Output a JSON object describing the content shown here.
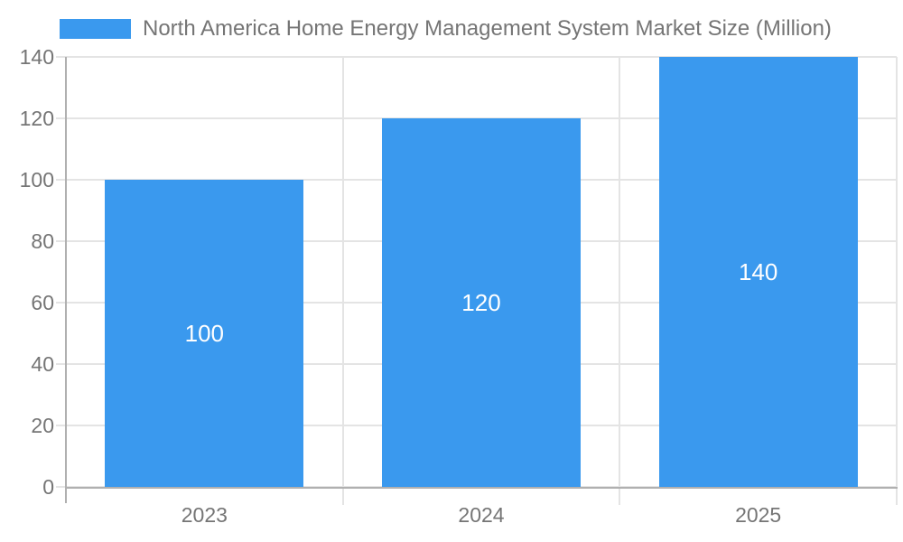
{
  "chart_data": {
    "type": "bar",
    "title": "North America Home Energy Management System Market Size (Million)",
    "series_name": "North America Home Energy Management System Market Size (Million)",
    "categories": [
      "2023",
      "2024",
      "2025"
    ],
    "values": [
      100,
      120,
      140
    ],
    "data_labels": [
      "100",
      "120",
      "140"
    ],
    "xlabel": "",
    "ylabel": "",
    "ylim": [
      0,
      140
    ],
    "yticks": [
      0,
      20,
      40,
      60,
      80,
      100,
      120,
      140
    ],
    "grid": true,
    "legend_position": "top-left",
    "data_labels_inside_bars": true,
    "colors": {
      "bar": "#3A99EE",
      "bar_label": "#FFFFFF",
      "axis_text": "#757575",
      "grid_line": "#E4E4E4",
      "axis_line": "#B0B0B0",
      "background": "#FFFFFF"
    }
  }
}
